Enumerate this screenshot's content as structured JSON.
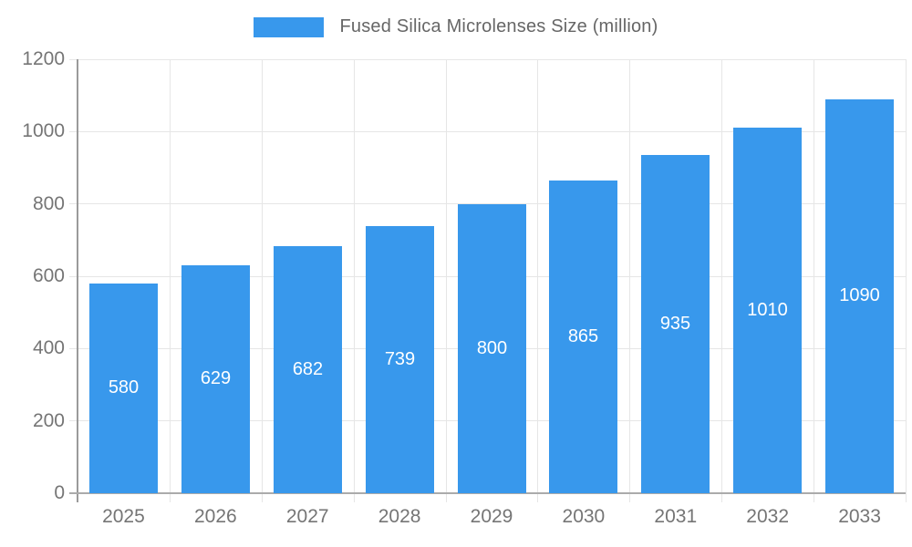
{
  "legend": {
    "label": "Fused Silica Microlenses Size (million)"
  },
  "colors": {
    "bar": "#3898ec",
    "grid": "#e6e6e6",
    "axis_line": "#9a9a9a",
    "tick_text": "#757575",
    "legend_text": "#666666",
    "value_text": "#ffffff",
    "background": "#ffffff"
  },
  "chart_data": {
    "type": "bar",
    "title": "Fused Silica Microlenses Size (million)",
    "categories": [
      "2025",
      "2026",
      "2027",
      "2028",
      "2029",
      "2030",
      "2031",
      "2032",
      "2033"
    ],
    "values": [
      580,
      629,
      682,
      739,
      800,
      865,
      935,
      1010,
      1090
    ],
    "xlabel": "",
    "ylabel": "",
    "ylim": [
      0,
      1200
    ],
    "ytick_step": 200,
    "yticks": [
      0,
      200,
      400,
      600,
      800,
      1000,
      1200
    ],
    "grid": true,
    "legend_position": "top-center",
    "value_labels": "inside-center-white",
    "bar_color": "#3898ec"
  }
}
